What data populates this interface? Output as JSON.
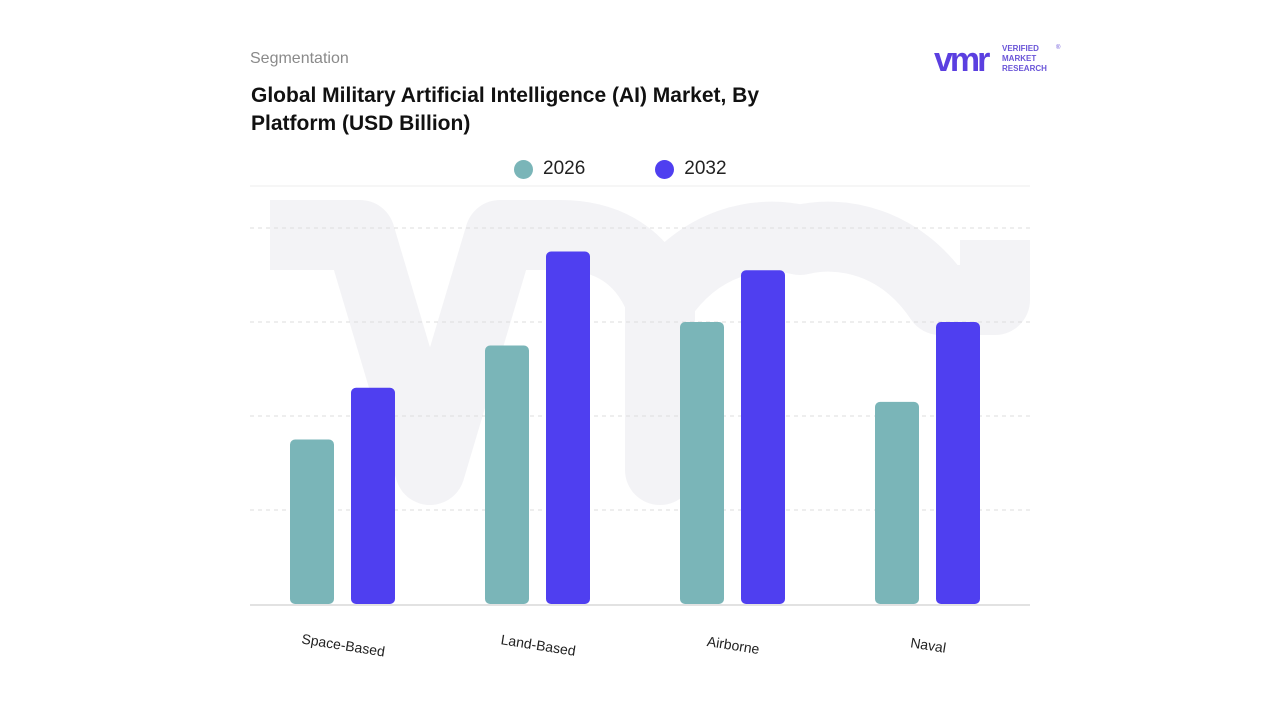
{
  "header": {
    "segment_label": "Segmentation",
    "title": "Global Military Artificial Intelligence (AI) Market, By Platform (USD Billion)"
  },
  "logo": {
    "mark": "vmr",
    "line1": "VERIFIED",
    "line2": "MARKET",
    "line3": "RESEARCH",
    "reg": "®"
  },
  "colors": {
    "series_2026": "#7ab5b8",
    "series_2032": "#4f3ff0",
    "grid": "#dddddd",
    "logo_purple": "#5b3fe0",
    "logo_text": "#6a55d8"
  },
  "chart_data": {
    "type": "bar",
    "title": "Global Military Artificial Intelligence (AI) Market, By Platform (USD Billion)",
    "categories": [
      "Space-Based",
      "Land-Based",
      "Airborne",
      "Naval"
    ],
    "series": [
      {
        "name": "2026",
        "values": [
          1.75,
          2.75,
          3.0,
          2.15
        ]
      },
      {
        "name": "2032",
        "values": [
          2.3,
          3.75,
          3.55,
          3.0
        ]
      }
    ],
    "ylim": [
      0,
      4
    ],
    "grid": true,
    "legend": "top-center",
    "xlabel": "",
    "ylabel": ""
  }
}
